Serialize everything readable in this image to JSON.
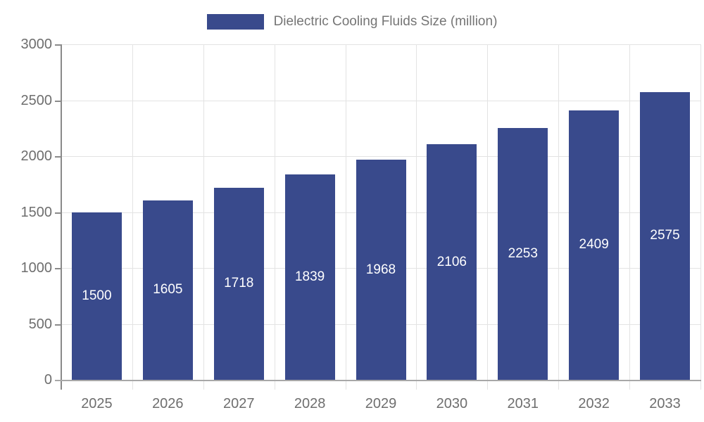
{
  "chart_data": {
    "type": "bar",
    "title": "Dielectric Cooling Fluids Size (million)",
    "categories": [
      "2025",
      "2026",
      "2027",
      "2028",
      "2029",
      "2030",
      "2031",
      "2032",
      "2033"
    ],
    "values": [
      1500,
      1605,
      1718,
      1839,
      1968,
      2106,
      2253,
      2409,
      2575
    ],
    "xlabel": "",
    "ylabel": "",
    "ylim": [
      0,
      3000
    ],
    "yticks": [
      0,
      500,
      1000,
      1500,
      2000,
      2500,
      3000
    ],
    "grid": true,
    "legend_position": "top-center",
    "colors": {
      "bar": "#394A8C",
      "bar_label": "#ffffff",
      "grid": "#e3e3e3",
      "axis": "#8a8a8a",
      "tick_text": "#6e6e6e",
      "legend_text": "#757575"
    }
  }
}
